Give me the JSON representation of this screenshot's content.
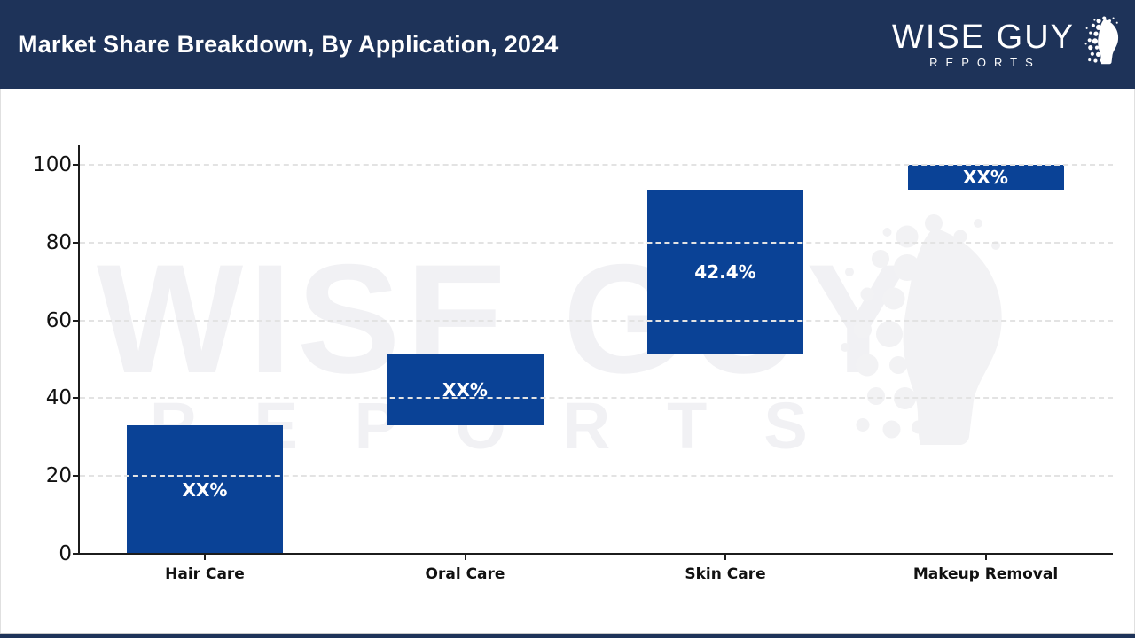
{
  "header": {
    "title": "Market Share Breakdown, By Application, 2024",
    "bg_color": "#1e3359",
    "logo": {
      "line1": "WISE GUY",
      "line2": "REPORTS"
    }
  },
  "watermark": {
    "line1": "WISE GUY",
    "line2": "REPORTS"
  },
  "chart_data": {
    "type": "bar",
    "subtype": "floating-waterfall",
    "title": "Market Share Breakdown, By Application, 2024",
    "categories": [
      "Hair Care",
      "Oral Care",
      "Skin Care",
      "Makeup Removal"
    ],
    "segments": [
      {
        "category": "Hair Care",
        "start": 0,
        "end": 33,
        "label": "XX%"
      },
      {
        "category": "Oral Care",
        "start": 33,
        "end": 51.3,
        "label": "XX%"
      },
      {
        "category": "Skin Care",
        "start": 51.3,
        "end": 93.7,
        "label": "42.4%"
      },
      {
        "category": "Makeup Removal",
        "start": 93.7,
        "end": 100,
        "label": "XX%"
      }
    ],
    "yticks": [
      0,
      20,
      40,
      60,
      80,
      100
    ],
    "ylim": [
      0,
      105
    ],
    "xlabel": "",
    "ylabel": "",
    "grid": "horizontal-dashed",
    "legend": "none",
    "bar_color": "#0a4296",
    "bar_label_color": "#ffffff"
  }
}
